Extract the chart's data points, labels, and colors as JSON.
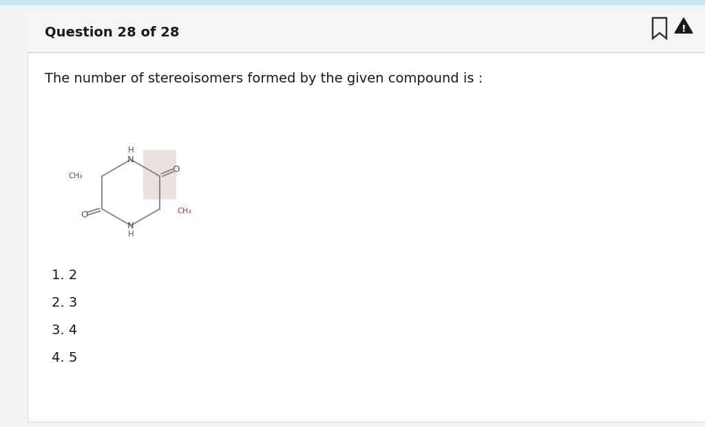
{
  "title_header": "Question 28 of 28",
  "question_text": "The number of stereoisomers formed by the given compound is :",
  "options": [
    "1. 2",
    "2. 3",
    "3. 4",
    "4. 5"
  ],
  "bg_color": "#f0f0f0",
  "outer_bg": "#ddeef5",
  "card_bg": "#ffffff",
  "card_border": "#dddddd",
  "header_bg": "#f0f0f0",
  "header_line_color": "#cccccc",
  "text_color": "#1a1a1a",
  "option_text_color": "#1a1a1a",
  "header_font_size": 14,
  "question_font_size": 14,
  "option_font_size": 14,
  "ring_color": "#888888",
  "label_color": "#555555",
  "ch3_red_color": "#cc3333",
  "highlight_color": "#e8d0d0",
  "top_bar_color": "#c8e6f0"
}
